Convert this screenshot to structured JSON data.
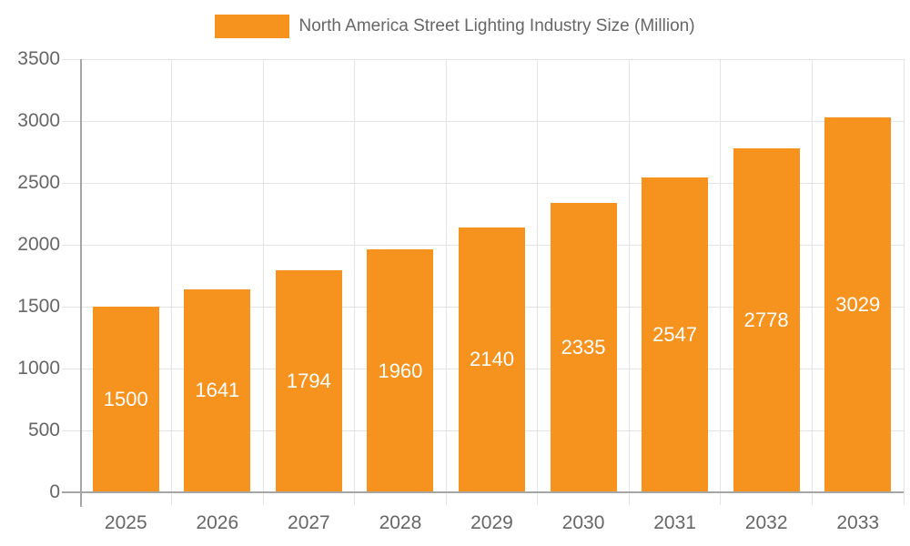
{
  "chart_data": {
    "type": "bar",
    "title": "North America Street Lighting Industry Size (Million)",
    "categories": [
      "2025",
      "2026",
      "2027",
      "2028",
      "2029",
      "2030",
      "2031",
      "2032",
      "2033"
    ],
    "values": [
      1500,
      1641,
      1794,
      1960,
      2140,
      2335,
      2547,
      2778,
      3029
    ],
    "xlabel": "",
    "ylabel": "",
    "ylim": [
      0,
      3500
    ],
    "yticks": [
      0,
      500,
      1000,
      1500,
      2000,
      2500,
      3000,
      3500
    ],
    "grid": true,
    "legend_position": "top",
    "data_labels": "inside-center",
    "colors": {
      "bar": "#F6921E",
      "bar_label": "#FFFFFF",
      "axis_text": "#666666",
      "gridline": "#E4E4E4",
      "axis_line": "#A6A6A6"
    }
  }
}
